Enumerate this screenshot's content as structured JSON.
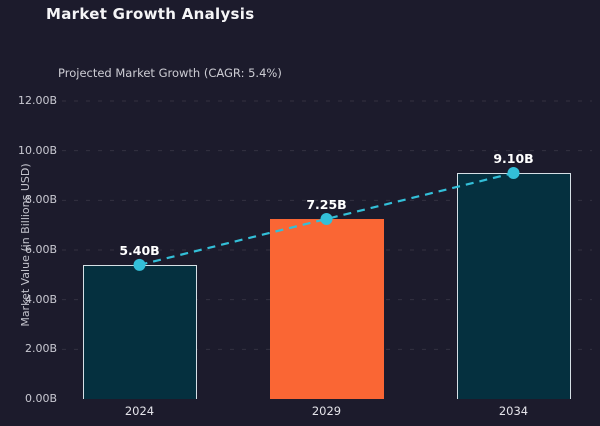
{
  "header": {
    "title": "Market Growth Analysis"
  },
  "chart_data": {
    "type": "bar",
    "title": "Projected Market Growth (CAGR: 5.4%)",
    "categories": [
      "2024",
      "2029",
      "2034"
    ],
    "values": [
      5.4,
      7.25,
      9.1
    ],
    "value_labels": [
      "5.40B",
      "7.25B",
      "9.10B"
    ],
    "xlabel": "",
    "ylabel": "Market Value (in Billions USD)",
    "ylim": [
      0,
      12
    ],
    "ytick_step": 2,
    "ytick_labels": [
      "0.00B",
      "2.00B",
      "4.00B",
      "6.00B",
      "8.00B",
      "10.00B",
      "12.00B"
    ],
    "grid": true,
    "legend": false,
    "bar_colors": [
      "#05303F",
      "#FA6634",
      "#05303F"
    ],
    "bar_border_colors": [
      "#D6E0E6",
      "#FA6634",
      "#D6E0E6"
    ],
    "trend_line": {
      "style": "dashed",
      "marker": "circle",
      "color": "#33BFD8"
    },
    "colors": {
      "background": "#1C1B2C",
      "title": "#F5F5F7",
      "subtitle": "#CDCDD4",
      "axis_label": "#C3C3CC",
      "tick_label": "#C9C9D2",
      "xtick_label": "#E4E4EA",
      "value_label": "#FFFFFF",
      "gridline": "rgba(255,255,255,0.10)"
    }
  }
}
